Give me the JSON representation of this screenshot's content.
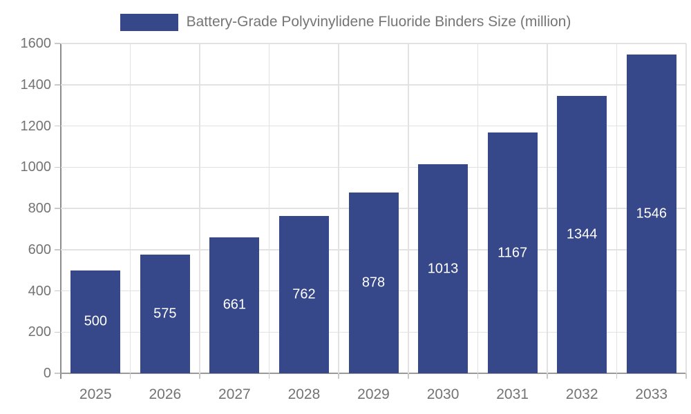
{
  "legend": {
    "label": "Battery-Grade Polyvinylidene Fluoride Binders Size (million)"
  },
  "chart_data": {
    "type": "bar",
    "title": "Battery-Grade Polyvinylidene Fluoride Binders Size (million)",
    "categories": [
      "2025",
      "2026",
      "2027",
      "2028",
      "2029",
      "2030",
      "2031",
      "2032",
      "2033"
    ],
    "values": [
      500,
      575,
      661,
      762,
      878,
      1013,
      1167,
      1344,
      1546
    ],
    "xlabel": "",
    "ylabel": "",
    "ylim": [
      0,
      1600
    ],
    "yticks": [
      0,
      200,
      400,
      600,
      800,
      1000,
      1200,
      1400,
      1600
    ],
    "grid": true,
    "legend_position": "top",
    "value_labels": "centered-inside-bars"
  },
  "colors": {
    "bar": "#36478A",
    "grid": "#E2E2E2",
    "axis": "#999999",
    "tick": "#C9C9C9",
    "tick_label": "#737373",
    "legend_text": "#757575",
    "value_label": "#FFFFFF",
    "background": "#FFFFFF"
  }
}
